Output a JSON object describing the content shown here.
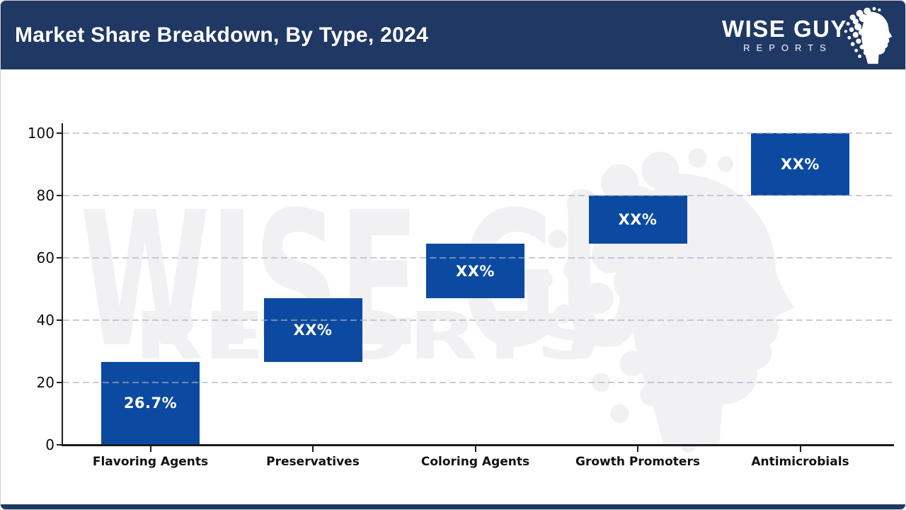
{
  "header": {
    "title": "Market Share Breakdown, By Type, 2024",
    "bg_color": "#1f3864",
    "logo": {
      "line1": "WISE GUY",
      "line2": "REPORTS"
    }
  },
  "watermark": {
    "line1": "WISE GUY",
    "line2": "REPORTS",
    "color": "#f1f1f4"
  },
  "chart_data": {
    "type": "bar",
    "subtype": "waterfall-segmented",
    "title": "Market Share Breakdown, By Type, 2024",
    "categories": [
      "Flavoring Agents",
      "Preservatives",
      "Coloring Agents",
      "Growth Promoters",
      "Antimicrobials"
    ],
    "segments": [
      {
        "category": "Flavoring Agents",
        "start": 0,
        "end": 26.7,
        "label": "26.7%"
      },
      {
        "category": "Preservatives",
        "start": 26.7,
        "end": 47,
        "label": "XX%"
      },
      {
        "category": "Coloring Agents",
        "start": 47,
        "end": 64.5,
        "label": "XX%"
      },
      {
        "category": "Growth Promoters",
        "start": 64.5,
        "end": 80,
        "label": "XX%"
      },
      {
        "category": "Antimicrobials",
        "start": 80,
        "end": 100,
        "label": "XX%"
      }
    ],
    "xlabel": "",
    "ylabel": "",
    "ylim": [
      0,
      100
    ],
    "yticks": [
      0,
      20,
      40,
      60,
      80,
      100
    ],
    "grid": {
      "horizontal": true,
      "style": "dashed"
    },
    "legend": "none",
    "colors": {
      "bar": "#0b4aa0",
      "bar_label": "#ffffff",
      "axis": "#1c1c1c",
      "gridline": "#c9ccd6"
    }
  },
  "footer": {
    "bg_color": "#1f3864"
  }
}
